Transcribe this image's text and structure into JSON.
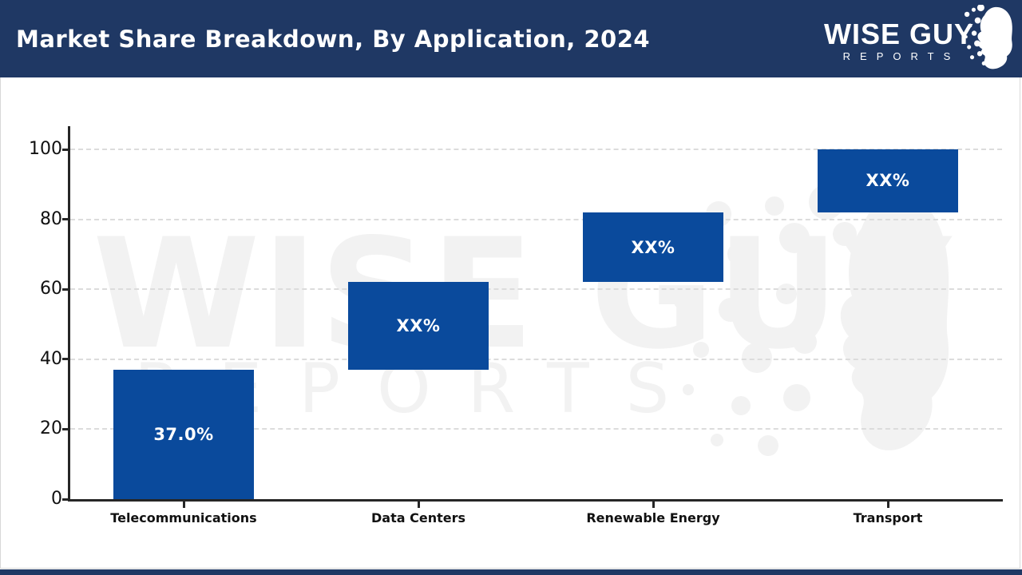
{
  "header": {
    "title": "Market Share Breakdown, By Application, 2024",
    "logo": {
      "line1": "WISE GUY",
      "line2": "REPORTS"
    }
  },
  "watermark": {
    "line1": "WISE GUY",
    "line2": "REPORTS"
  },
  "chart_data": {
    "type": "bar",
    "subtype": "waterfall",
    "title": "Market Share Breakdown, By Application, 2024",
    "categories": [
      "Telecommunications",
      "Data Centers",
      "Renewable Energy",
      "Transport"
    ],
    "segments": [
      {
        "category": "Telecommunications",
        "start": 0,
        "end": 37,
        "label": "37.0%"
      },
      {
        "category": "Data Centers",
        "start": 37,
        "end": 62,
        "label": "XX%"
      },
      {
        "category": "Renewable Energy",
        "start": 62,
        "end": 82,
        "label": "XX%"
      },
      {
        "category": "Transport",
        "start": 82,
        "end": 100,
        "label": "XX%"
      }
    ],
    "values": [
      37,
      25,
      20,
      18
    ],
    "value_labels": [
      "37.0%",
      "XX%",
      "XX%",
      "XX%"
    ],
    "xlabel": "",
    "ylabel": "",
    "ylim": [
      0,
      100
    ],
    "yticks": [
      0,
      20,
      40,
      60,
      80,
      100
    ],
    "grid": "horizontal-dashed",
    "legend": "none"
  },
  "colors": {
    "header_bg": "#1F3864",
    "footer_bg": "#1F3864",
    "bar": "#0A4A9C",
    "bar_label": "#FFFFFF",
    "grid": "#DCDCDC",
    "axis": "#262626",
    "tick_text": "#111111",
    "watermark": "#F2F2F2"
  }
}
